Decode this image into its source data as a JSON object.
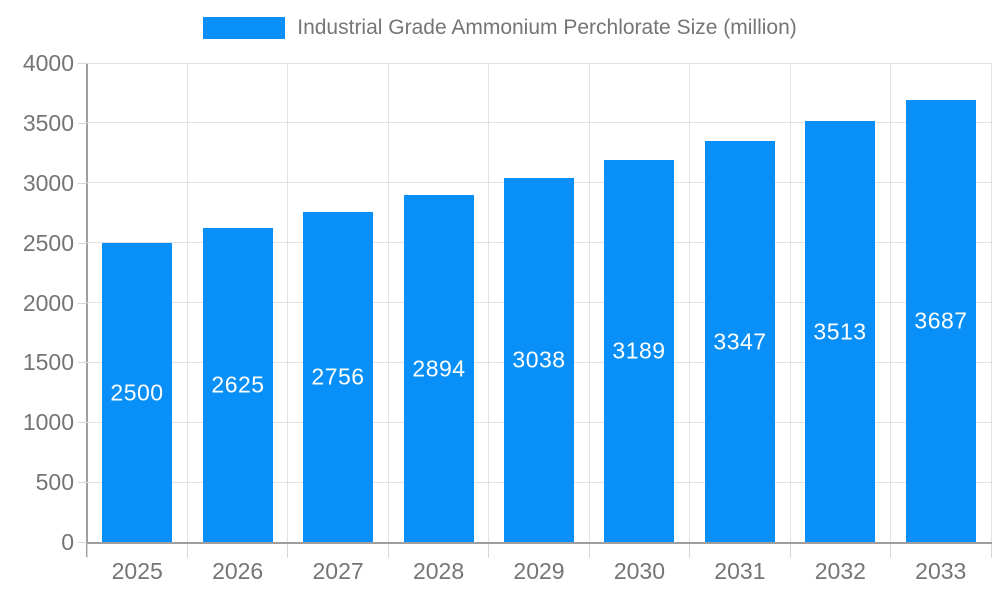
{
  "legend": {
    "label": "Industrial Grade Ammonium Perchlorate Size (million)",
    "position": "top"
  },
  "chart_data": {
    "type": "bar",
    "title": "Industrial Grade Ammonium Perchlorate Size (million)",
    "categories": [
      "2025",
      "2026",
      "2027",
      "2028",
      "2029",
      "2030",
      "2031",
      "2032",
      "2033"
    ],
    "values": [
      2500,
      2625,
      2756,
      2894,
      3038,
      3189,
      3347,
      3513,
      3687
    ],
    "value_labels": [
      "2500",
      "2625",
      "2756",
      "2894",
      "3038",
      "3189",
      "3347",
      "3513",
      "3687"
    ],
    "xlabel": "",
    "ylabel": "",
    "ylim": [
      0,
      4000
    ],
    "ytick_step": 500,
    "yticks": [
      0,
      500,
      1000,
      1500,
      2000,
      2500,
      3000,
      3500,
      4000
    ],
    "grid": true,
    "legend_position": "top",
    "value_label_position": "inside-center",
    "colors": {
      "bar": "#0890F8",
      "value_label": "#FFFFFF",
      "axis_text": "#757575",
      "gridline": "#E2E2E2",
      "axis_line": "#9E9E9E",
      "tick": "#D6D6D6",
      "background": "#FFFFFF"
    }
  }
}
